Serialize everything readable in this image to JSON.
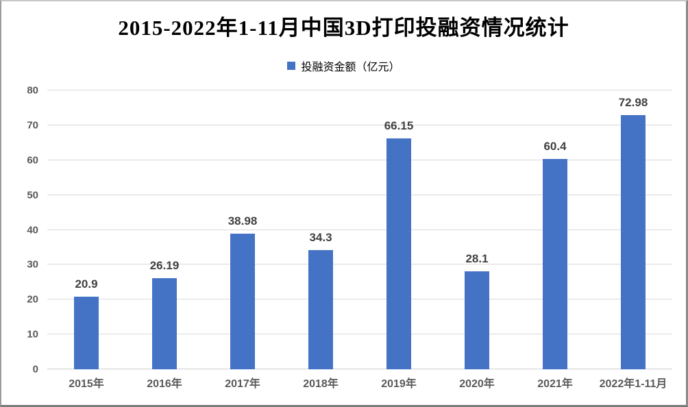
{
  "page": {
    "title": "2015-2022年1-11月中国3D打印投融资情况统计"
  },
  "legend": {
    "label": "投融资金额（亿元）",
    "marker": "square",
    "position": "top"
  },
  "colors": {
    "bar": "#4472c4",
    "grid": "#d9d9d9",
    "axis_labels": "#595959",
    "value_labels": "#404040",
    "title": "#000000",
    "background": "#ffffff"
  },
  "chart_data": {
    "type": "bar",
    "title": "2015-2022年1-11月中国3D打印投融资情况统计",
    "series_name": "投融资金额（亿元）",
    "categories": [
      "2015年",
      "2016年",
      "2017年",
      "2018年",
      "2019年",
      "2020年",
      "2021年",
      "2022年1-11月"
    ],
    "values": [
      20.9,
      26.19,
      38.98,
      34.3,
      66.15,
      28.1,
      60.4,
      72.98
    ],
    "value_labels": [
      "20.9",
      "26.19",
      "38.98",
      "34.3",
      "66.15",
      "28.1",
      "60.4",
      "72.98"
    ],
    "xlabel": "",
    "ylabel": "",
    "ylim": [
      0,
      80
    ],
    "yticks": [
      0,
      10,
      20,
      30,
      40,
      50,
      60,
      70,
      80
    ],
    "grid": true,
    "legend_position": "top-center",
    "bar_color": "#4472c4"
  }
}
